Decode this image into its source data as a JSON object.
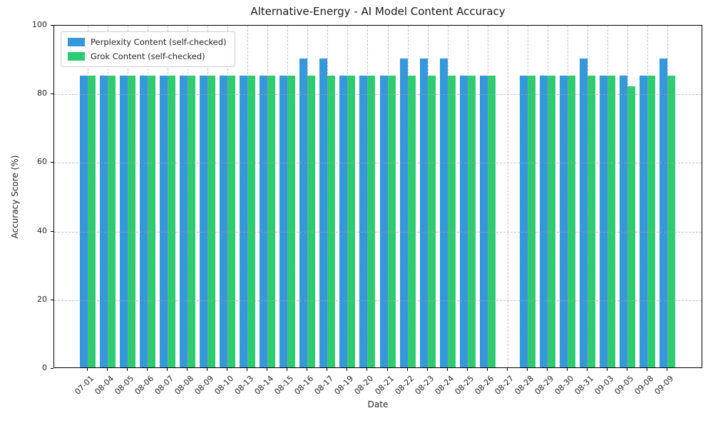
{
  "chart_data": {
    "type": "bar",
    "title": "Alternative-Energy - AI Model Content Accuracy",
    "xlabel": "Date",
    "ylabel": "Accuracy Score (%)",
    "ylim": [
      0,
      100
    ],
    "yticks": [
      0,
      20,
      40,
      60,
      80,
      100
    ],
    "grid": true,
    "grid_style": "dashed",
    "legend_position": "upper-left",
    "background_color": "#ffffff",
    "categories": [
      "07-01",
      "08-04",
      "08-05",
      "08-06",
      "08-07",
      "08-08",
      "08-09",
      "08-10",
      "08-13",
      "08-14",
      "08-15",
      "08-16",
      "08-17",
      "08-19",
      "08-20",
      "08-21",
      "08-22",
      "08-23",
      "08-24",
      "08-25",
      "08-26",
      "08-27",
      "08-28",
      "08-29",
      "08-30",
      "08-31",
      "09-03",
      "09-05",
      "09-08",
      "09-09"
    ],
    "series": [
      {
        "name": "Perplexity Content (self-checked)",
        "color": "#3498db",
        "values": [
          85,
          85,
          85,
          85,
          85,
          85,
          85,
          85,
          85,
          85,
          85,
          90,
          90,
          85,
          85,
          85,
          90,
          90,
          90,
          85,
          85,
          null,
          85,
          85,
          85,
          90,
          85,
          85,
          85,
          90
        ]
      },
      {
        "name": "Grok Content (self-checked)",
        "color": "#2ecc71",
        "values": [
          85,
          85,
          85,
          85,
          85,
          85,
          85,
          85,
          85,
          85,
          85,
          85,
          85,
          85,
          85,
          85,
          85,
          85,
          85,
          85,
          85,
          null,
          85,
          85,
          85,
          85,
          85,
          82,
          85,
          85
        ]
      }
    ],
    "notes": "No data shown for 08-27"
  }
}
